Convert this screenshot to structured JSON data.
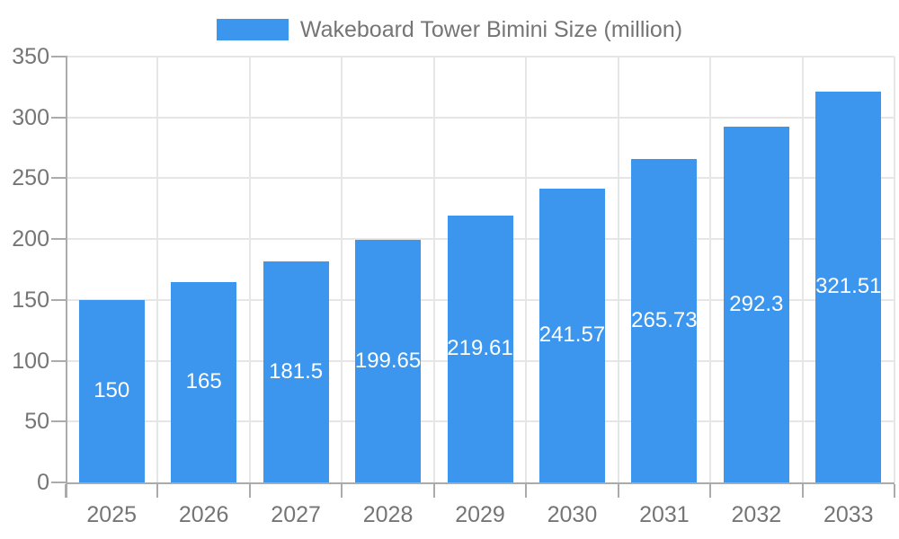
{
  "legend": {
    "label": "Wakeboard Tower Bimini Size (million)"
  },
  "chart_data": {
    "type": "bar",
    "title": "Wakeboard Tower Bimini Size (million)",
    "series_name": "Wakeboard Tower Bimini Size (million)",
    "categories": [
      "2025",
      "2026",
      "2027",
      "2028",
      "2029",
      "2030",
      "2031",
      "2032",
      "2033"
    ],
    "values": [
      150,
      165,
      181.5,
      199.65,
      219.61,
      241.57,
      265.73,
      292.3,
      321.51
    ],
    "value_labels": [
      "150",
      "165",
      "181.5",
      "199.65",
      "219.61",
      "241.57",
      "265.73",
      "292.3",
      "321.51"
    ],
    "xlabel": "",
    "ylabel": "",
    "ylim": [
      0,
      350
    ],
    "ytick_step": 50,
    "yticks": [
      0,
      50,
      100,
      150,
      200,
      250,
      300,
      350
    ],
    "grid": true,
    "legend_position": "top",
    "show_value_labels": true,
    "colors": {
      "bar": "#3D96EE",
      "grid": "#E6E6E6",
      "axis": "#ABABAB",
      "axis_text": "#757575",
      "value_label_text": "#FFFFFF",
      "background": "#FFFFFF"
    }
  }
}
